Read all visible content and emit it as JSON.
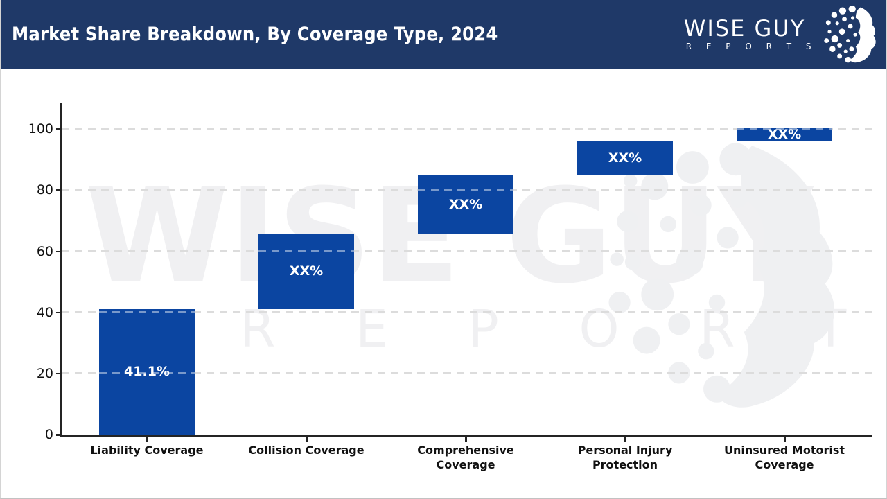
{
  "header": {
    "title": "Market Share Breakdown, By Coverage Type, 2024",
    "bg_color": "#1f3968",
    "logo": {
      "line1": "WISE GUY",
      "line2": "R E P O R T S"
    }
  },
  "watermark": {
    "line1": "WISE GUY",
    "line2": "R E P O R T S"
  },
  "chart_data": {
    "type": "bar",
    "subtype": "waterfall",
    "title": "Market Share Breakdown, By Coverage Type, 2024",
    "categories": [
      "Liability Coverage",
      "Collision Coverage",
      "Comprehensive Coverage",
      "Personal Injury Protection",
      "Uninsured Motorist Coverage"
    ],
    "bars": [
      {
        "category": "Liability Coverage",
        "start": 0,
        "end": 41.1,
        "label": "41.1%"
      },
      {
        "category": "Collision Coverage",
        "start": 41.1,
        "end": 65.8,
        "label": "XX%"
      },
      {
        "category": "Comprehensive Coverage",
        "start": 65.8,
        "end": 85.0,
        "label": "XX%"
      },
      {
        "category": "Personal Injury Protection",
        "start": 85.0,
        "end": 96.1,
        "label": "XX%"
      },
      {
        "category": "Uninsured Motorist Coverage",
        "start": 96.1,
        "end": 100.3,
        "label": "XX%"
      }
    ],
    "yticks": [
      0,
      20,
      40,
      60,
      80,
      100
    ],
    "ylim": [
      0,
      108
    ],
    "bar_color": "#0b45a1",
    "bar_label_color": "#ffffff",
    "grid": "dashed-horizontal",
    "legend": null
  }
}
